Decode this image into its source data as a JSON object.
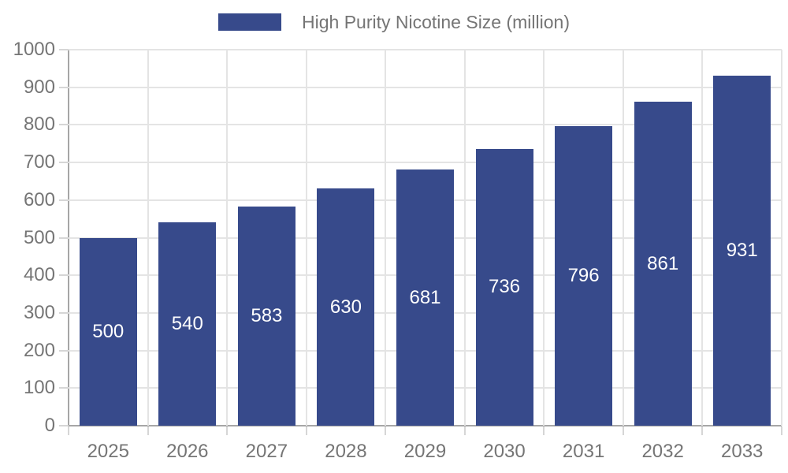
{
  "chart_data": {
    "type": "bar",
    "title": "High Purity Nicotine Size (million)",
    "legend": {
      "label": "High Purity Nicotine Size (million)",
      "position": "top"
    },
    "categories": [
      "2025",
      "2026",
      "2027",
      "2028",
      "2029",
      "2030",
      "2031",
      "2032",
      "2033"
    ],
    "values": [
      500,
      540,
      583,
      630,
      681,
      736,
      796,
      861,
      931
    ],
    "xlabel": "",
    "ylabel": "",
    "ylim": [
      0,
      1000
    ],
    "y_tick_interval": 100,
    "y_tick_labels": [
      "0",
      "100",
      "200",
      "300",
      "400",
      "500",
      "600",
      "700",
      "800",
      "900",
      "1000"
    ],
    "grid": true,
    "value_labels_inside_bars": true,
    "colors": {
      "bar": "#374A8B",
      "axis_label": "#757575",
      "value_label": "#FFFFFF",
      "grid_line": "#E4E4E4",
      "axis_line": "#A6A6A6"
    }
  }
}
